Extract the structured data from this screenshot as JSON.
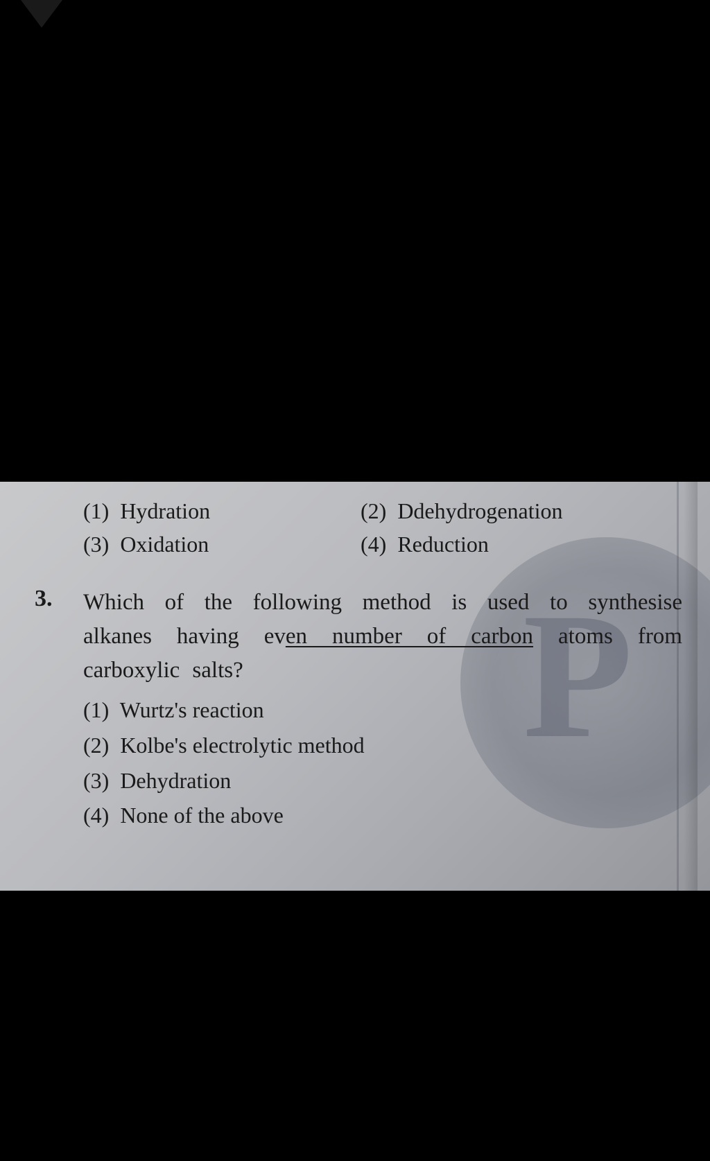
{
  "colors": {
    "page_bg": "#000000",
    "paper_light": "#c8c9cb",
    "paper_dark": "#94969c",
    "text": "#1a1a1a",
    "watermark": "#4a5062"
  },
  "typography": {
    "body_fontsize_pt": 24,
    "qnum_fontsize_pt": 25,
    "font_family": "serif"
  },
  "prev_question": {
    "options": [
      {
        "num": "(1)",
        "label": "Hydration"
      },
      {
        "num": "(2)",
        "label": "Ddehydrogenation"
      },
      {
        "num": "(3)",
        "label": "Oxidation"
      },
      {
        "num": "(4)",
        "label": "Reduction"
      }
    ]
  },
  "question": {
    "number": "3.",
    "text_pre": "Which of the following method is used to synthesise alkanes having ev",
    "text_underlined": "en number of carbon",
    "text_post": " atoms from carboxylic salts?",
    "options": [
      {
        "num": "(1)",
        "label": "Wurtz's reaction"
      },
      {
        "num": "(2)",
        "label": "Kolbe's electrolytic method"
      },
      {
        "num": "(3)",
        "label": "Dehydration"
      },
      {
        "num": "(4)",
        "label": "None of the above"
      }
    ]
  },
  "watermark_letter": "P"
}
